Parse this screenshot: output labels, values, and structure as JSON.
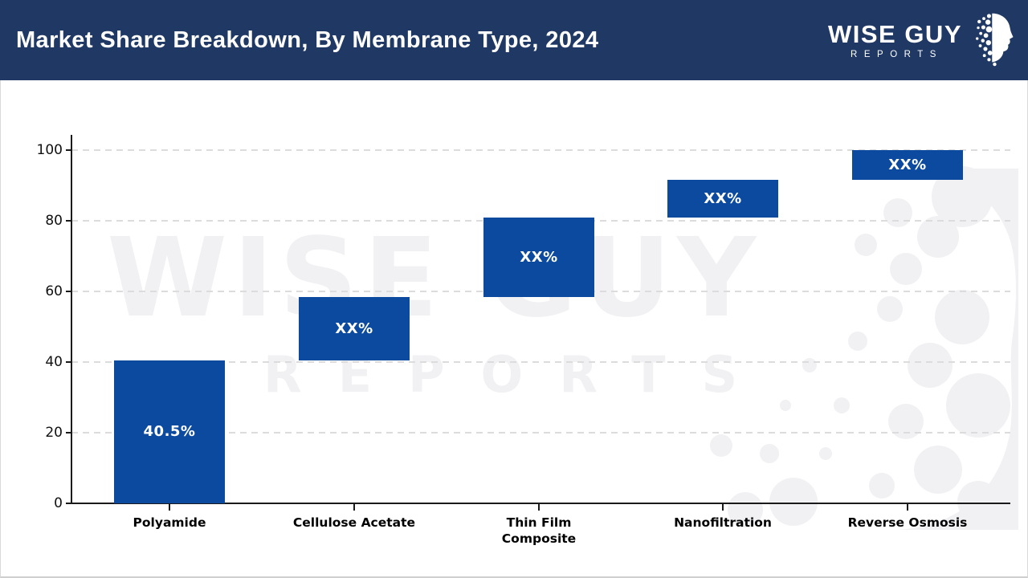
{
  "header": {
    "title": "Market Share Breakdown, By Membrane Type, 2024",
    "logo": {
      "wordmark": "WISE GUY",
      "subtext": "REPORTS"
    }
  },
  "watermark": {
    "wordmark": "WISE GUY",
    "subtext": "REPORTS"
  },
  "colors": {
    "header_bg": "#1F3864",
    "bar": "#0B4A9E",
    "bar_label": "#FFFFFF",
    "grid": "#DCDCDC",
    "axis": "#1A1A1A",
    "text": "#111111",
    "watermark": "#F1F1F4",
    "frame": "#D9D9D9"
  },
  "chart_data": {
    "type": "bar",
    "subtype": "waterfall",
    "title": "Market Share Breakdown, By Membrane Type, 2024",
    "xlabel": "",
    "ylabel": "",
    "ylim": [
      0,
      100
    ],
    "yticks": [
      0,
      20,
      40,
      60,
      80,
      100
    ],
    "grid": "horizontal-dashed",
    "legend": "none",
    "categories": [
      "Polyamide",
      "Cellulose Acetate",
      "Thin Film\nComposite",
      "Nanofiltration",
      "Reverse Osmosis"
    ],
    "segments": [
      {
        "category": "Polyamide",
        "start": 0,
        "end": 40.5,
        "label": "40.5%"
      },
      {
        "category": "Cellulose Acetate",
        "start": 40.5,
        "end": 58.5,
        "label": "XX%"
      },
      {
        "category": "Thin Film\nComposite",
        "start": 58.5,
        "end": 81,
        "label": "XX%"
      },
      {
        "category": "Nanofiltration",
        "start": 81,
        "end": 91.5,
        "label": "XX%"
      },
      {
        "category": "Reverse Osmosis",
        "start": 91.5,
        "end": 100,
        "label": "XX%"
      }
    ]
  }
}
